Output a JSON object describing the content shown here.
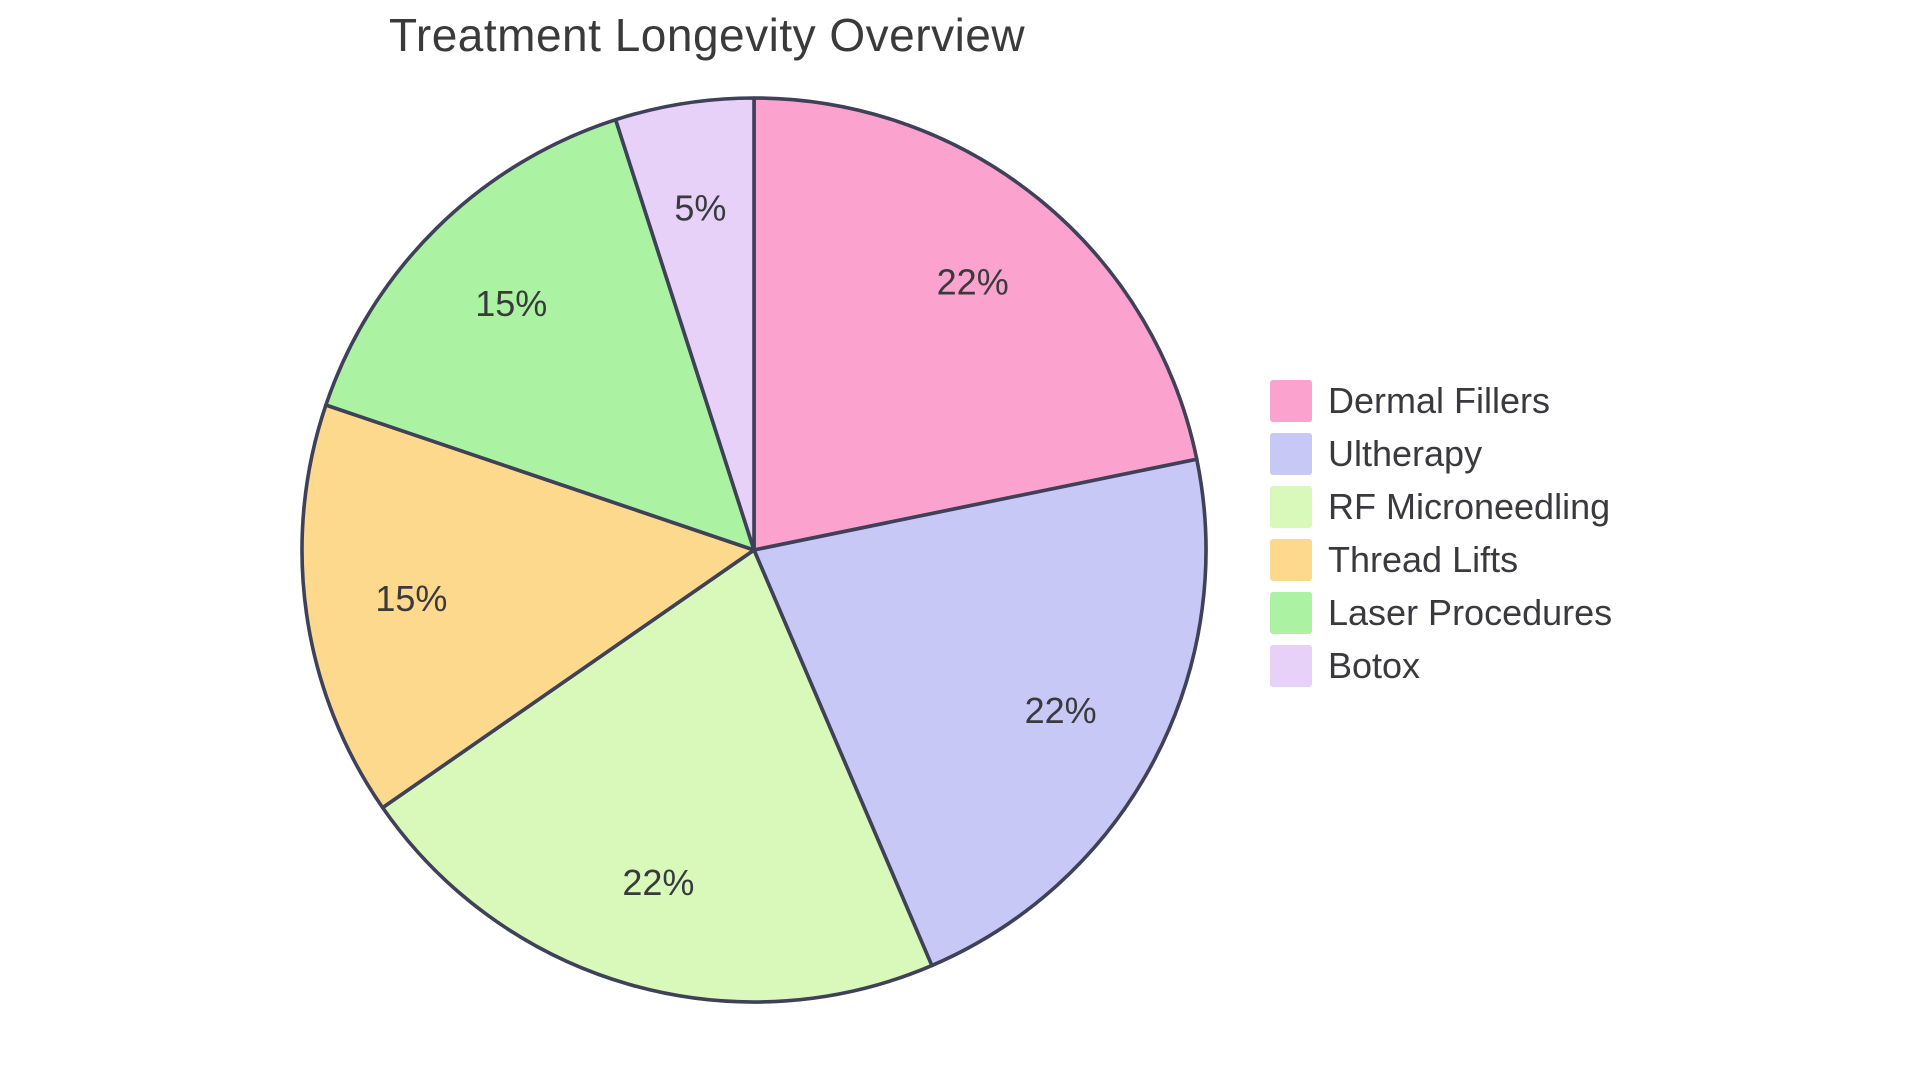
{
  "chart_data": {
    "type": "pie",
    "title": "Treatment Longevity Overview",
    "labels": [
      "Dermal Fillers",
      "Ultherapy",
      "RF Microneedling",
      "Thread Lifts",
      "Laser Procedures",
      "Botox"
    ],
    "values": [
      22,
      22,
      22,
      15,
      15,
      5
    ],
    "percent_labels": [
      "22%",
      "22%",
      "22%",
      "15%",
      "15%",
      "5%"
    ],
    "colors": [
      "#FBA3CE",
      "#C8C8F7",
      "#D9F9BA",
      "#FDD98D",
      "#ACF2A3",
      "#E7D1F8"
    ],
    "slice_border_color": "#3E4157",
    "label_color": "#3A3A3E",
    "background": "#FFFFFF",
    "start_angle_deg": 0,
    "direction": "clockwise",
    "legend_position": "right",
    "grid": false
  }
}
